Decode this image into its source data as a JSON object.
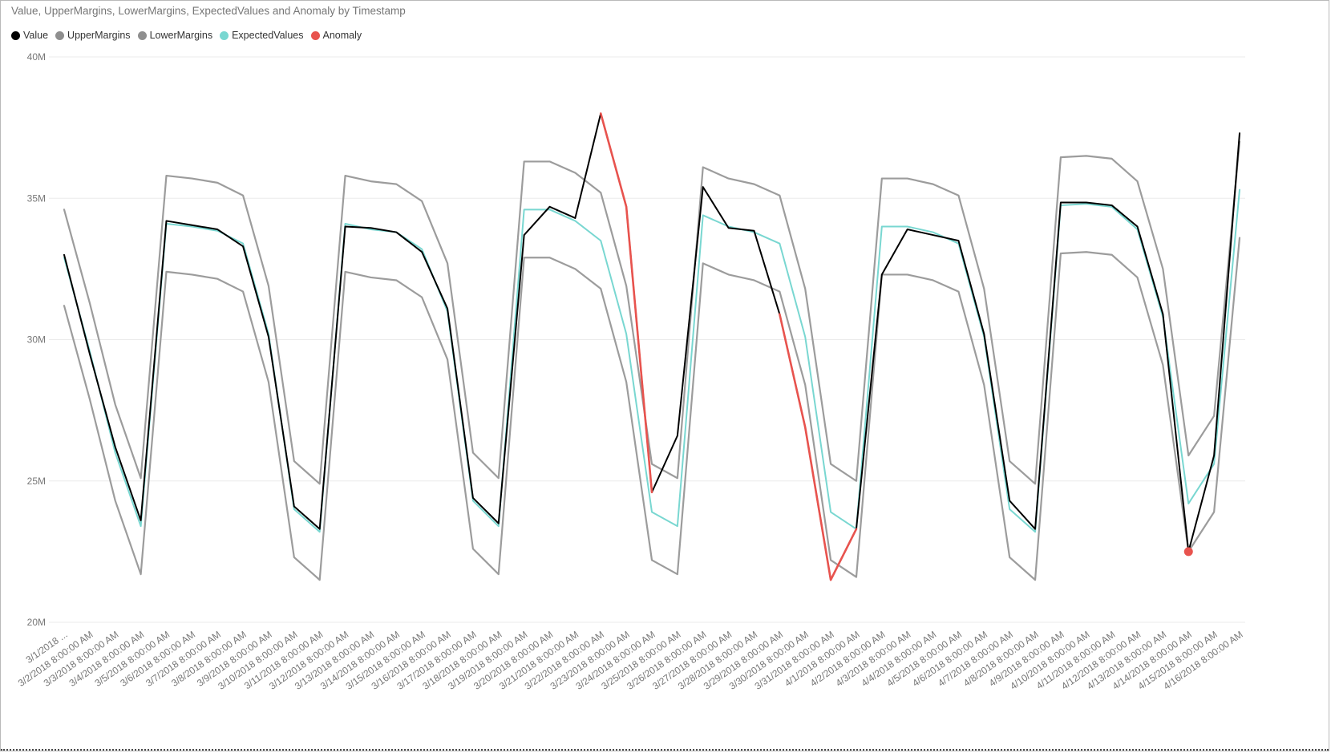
{
  "title": "Value, UpperMargins, LowerMargins, ExpectedValues and Anomaly by Timestamp",
  "legend": [
    {
      "label": "Value",
      "color": "#000000"
    },
    {
      "label": "UpperMargins",
      "color": "#8f8f8f"
    },
    {
      "label": "LowerMargins",
      "color": "#8f8f8f"
    },
    {
      "label": "ExpectedValues",
      "color": "#79d7d1"
    },
    {
      "label": "Anomaly",
      "color": "#e8534e"
    }
  ],
  "chart_data": {
    "type": "line",
    "unit": "millions",
    "ylim": [
      20,
      40
    ],
    "yticks": [
      {
        "value": 40,
        "label": "40M"
      },
      {
        "value": 35,
        "label": "35M"
      },
      {
        "value": 30,
        "label": "30M"
      },
      {
        "value": 25,
        "label": "25M"
      },
      {
        "value": 20,
        "label": "20M"
      }
    ],
    "categories": [
      "3/1/2018 ...",
      "3/2/2018 8:00:00 AM",
      "3/3/2018 8:00:00 AM",
      "3/4/2018 8:00:00 AM",
      "3/5/2018 8:00:00 AM",
      "3/6/2018 8:00:00 AM",
      "3/7/2018 8:00:00 AM",
      "3/8/2018 8:00:00 AM",
      "3/9/2018 8:00:00 AM",
      "3/10/2018 8:00:00 AM",
      "3/11/2018 8:00:00 AM",
      "3/12/2018 8:00:00 AM",
      "3/13/2018 8:00:00 AM",
      "3/14/2018 8:00:00 AM",
      "3/15/2018 8:00:00 AM",
      "3/16/2018 8:00:00 AM",
      "3/17/2018 8:00:00 AM",
      "3/18/2018 8:00:00 AM",
      "3/19/2018 8:00:00 AM",
      "3/20/2018 8:00:00 AM",
      "3/21/2018 8:00:00 AM",
      "3/22/2018 8:00:00 AM",
      "3/23/2018 8:00:00 AM",
      "3/24/2018 8:00:00 AM",
      "3/25/2018 8:00:00 AM",
      "3/26/2018 8:00:00 AM",
      "3/27/2018 8:00:00 AM",
      "3/28/2018 8:00:00 AM",
      "3/29/2018 8:00:00 AM",
      "3/30/2018 8:00:00 AM",
      "3/31/2018 8:00:00 AM",
      "4/1/2018 8:00:00 AM",
      "4/2/2018 8:00:00 AM",
      "4/3/2018 8:00:00 AM",
      "4/4/2018 8:00:00 AM",
      "4/5/2018 8:00:00 AM",
      "4/6/2018 8:00:00 AM",
      "4/7/2018 8:00:00 AM",
      "4/8/2018 8:00:00 AM",
      "4/9/2018 8:00:00 AM",
      "4/10/2018 8:00:00 AM",
      "4/11/2018 8:00:00 AM",
      "4/12/2018 8:00:00 AM",
      "4/13/2018 8:00:00 AM",
      "4/14/2018 8:00:00 AM",
      "4/15/2018 8:00:00 AM",
      "4/16/2018 8:00:00 AM"
    ],
    "series": [
      {
        "name": "Value",
        "color": "#000000",
        "width": 2,
        "values": [
          33.0,
          29.5,
          26.2,
          23.6,
          34.2,
          34.05,
          33.9,
          33.3,
          30.1,
          24.1,
          23.3,
          34.0,
          33.95,
          33.8,
          33.1,
          31.1,
          24.4,
          23.5,
          33.7,
          34.7,
          34.3,
          38.0,
          34.7,
          24.6,
          26.6,
          35.4,
          33.95,
          33.85,
          30.9,
          26.9,
          21.5,
          23.3,
          32.3,
          33.9,
          33.7,
          33.5,
          30.2,
          24.3,
          23.3,
          34.85,
          34.85,
          34.75,
          34.0,
          30.9,
          22.5,
          25.9,
          37.3
        ]
      },
      {
        "name": "UpperMargins",
        "color": "#9c9c9c",
        "width": 2.2,
        "values": [
          34.6,
          31.3,
          27.7,
          25.1,
          35.8,
          35.7,
          35.55,
          35.1,
          31.9,
          25.7,
          24.9,
          35.8,
          35.6,
          35.5,
          34.9,
          32.7,
          26.0,
          25.1,
          36.3,
          36.3,
          35.9,
          35.2,
          31.9,
          25.6,
          25.1,
          36.1,
          35.7,
          35.5,
          35.1,
          31.8,
          25.6,
          25.0,
          35.7,
          35.7,
          35.5,
          35.1,
          31.8,
          25.7,
          24.9,
          36.45,
          36.5,
          36.4,
          35.6,
          32.5,
          25.9,
          27.3,
          37.0
        ]
      },
      {
        "name": "LowerMargins",
        "color": "#9c9c9c",
        "width": 2.2,
        "values": [
          31.2,
          27.9,
          24.3,
          21.7,
          32.4,
          32.3,
          32.15,
          31.7,
          28.5,
          22.3,
          21.5,
          32.4,
          32.2,
          32.1,
          31.5,
          29.3,
          22.6,
          21.7,
          32.9,
          32.9,
          32.5,
          31.8,
          28.5,
          22.2,
          21.7,
          32.7,
          32.3,
          32.1,
          31.7,
          28.4,
          22.2,
          21.6,
          32.3,
          32.3,
          32.1,
          31.7,
          28.4,
          22.3,
          21.5,
          33.05,
          33.1,
          33.0,
          32.2,
          29.1,
          22.5,
          23.9,
          33.6
        ]
      },
      {
        "name": "ExpectedValues",
        "color": "#79d7d1",
        "width": 2,
        "values": [
          32.9,
          29.6,
          26.0,
          23.4,
          34.1,
          34.0,
          33.85,
          33.4,
          30.2,
          24.0,
          23.2,
          34.1,
          33.9,
          33.8,
          33.2,
          31.0,
          24.3,
          23.4,
          34.6,
          34.6,
          34.2,
          33.5,
          30.2,
          23.9,
          23.4,
          34.4,
          34.0,
          33.8,
          33.4,
          30.1,
          23.9,
          23.3,
          34.0,
          34.0,
          33.8,
          33.4,
          30.1,
          24.0,
          23.2,
          34.75,
          34.8,
          34.7,
          33.9,
          30.8,
          24.2,
          25.6,
          35.3
        ]
      }
    ],
    "anomaly": {
      "name": "Anomaly",
      "color": "#e8534e",
      "width": 2.6,
      "segments": [
        {
          "from": 21,
          "to": 23
        },
        {
          "from": 28,
          "to": 31
        }
      ],
      "markers": [
        {
          "index": 44,
          "value": 22.5
        }
      ]
    },
    "legend_position": "top-left",
    "grid": true
  }
}
